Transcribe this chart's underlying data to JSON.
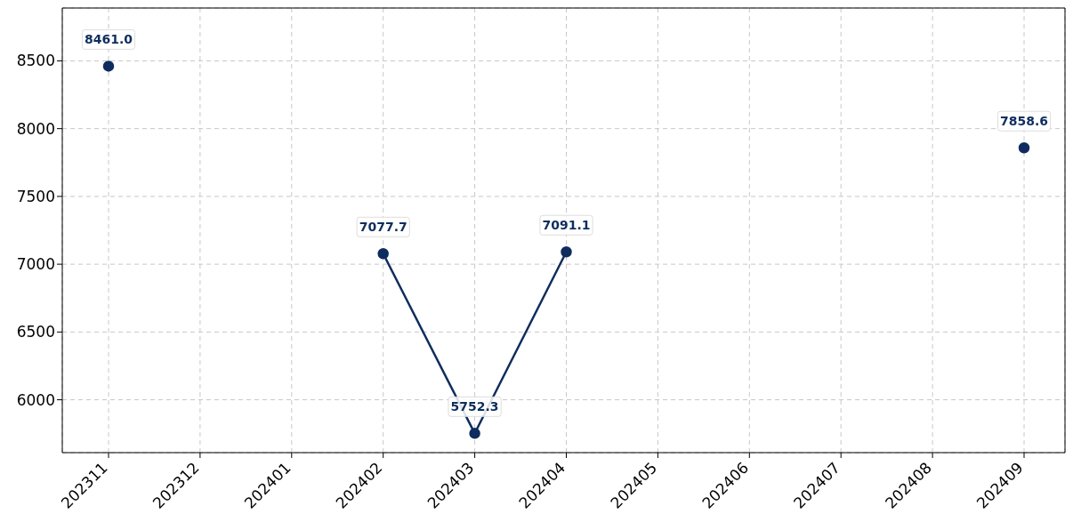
{
  "chart_data": {
    "type": "line",
    "categories": [
      "202311",
      "202312",
      "202401",
      "202402",
      "202403",
      "202404",
      "202405",
      "202406",
      "202407",
      "202408",
      "202409"
    ],
    "series": [
      {
        "color": "#0e2d5e",
        "values": [
          8461.0,
          null,
          null,
          7077.7,
          5752.3,
          7091.1,
          null,
          null,
          null,
          null,
          7858.6
        ],
        "value_labels": [
          "8461.0",
          null,
          null,
          "7077.7",
          "5752.3",
          "7091.1",
          null,
          null,
          null,
          null,
          "7858.6"
        ]
      }
    ],
    "ylim": [
      5610,
      8890
    ],
    "yticks": [
      6000,
      6500,
      7000,
      7500,
      8000,
      8500
    ],
    "grid": true,
    "marker": "circle",
    "line_style": "solid"
  }
}
